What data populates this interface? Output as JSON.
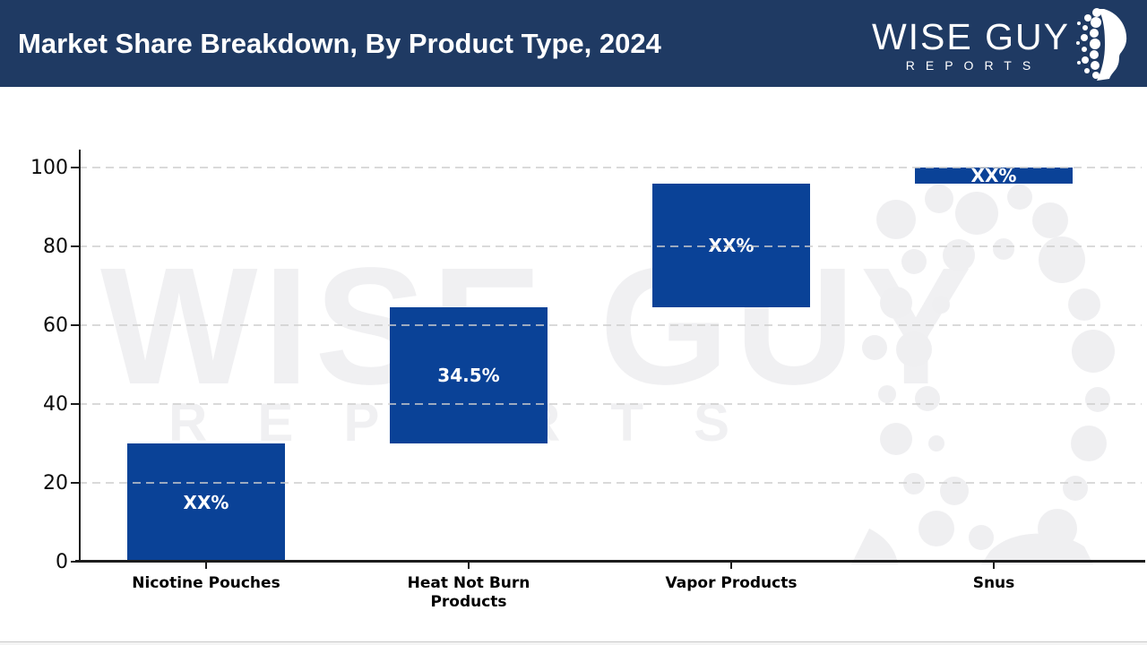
{
  "header": {
    "title": "Market Share Breakdown, By Product Type, 2024",
    "logo": {
      "line1": "WISE GUY",
      "line2": "REPORTS"
    }
  },
  "watermark": {
    "line1": "WISE GUY",
    "line2": "REPORTS"
  },
  "chart_data": {
    "type": "bar",
    "subtype": "stacked-waterfall",
    "title": "Market Share Breakdown, By Product Type, 2024",
    "categories": [
      "Nicotine Pouches",
      "Heat Not Burn\nProducts",
      "Vapor Products",
      "Snus"
    ],
    "segments": [
      {
        "category": "Nicotine Pouches",
        "start": 0,
        "end": 30,
        "value": 30,
        "label": "XX%"
      },
      {
        "category": "Heat Not Burn Products",
        "start": 30,
        "end": 64.5,
        "value": 34.5,
        "label": "34.5%"
      },
      {
        "category": "Vapor Products",
        "start": 64.5,
        "end": 96,
        "value": 31.5,
        "label": "XX%"
      },
      {
        "category": "Snus",
        "start": 96,
        "end": 100,
        "value": 4,
        "label": "XX%"
      }
    ],
    "yticks": [
      0,
      20,
      40,
      60,
      80,
      100
    ],
    "ylim": [
      0,
      104.5
    ],
    "xlabel": "",
    "ylabel": "",
    "grid": true,
    "grid_style": "dashed",
    "legend": "none",
    "bar_color": "#0a4297",
    "label_color": "#ffffff",
    "header_color": "#1f3a63"
  }
}
